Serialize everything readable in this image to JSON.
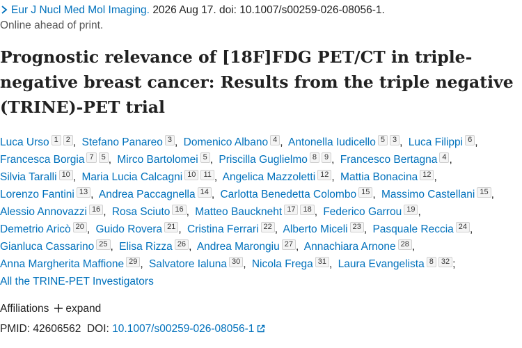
{
  "journal": {
    "name": "Eur J Nucl Med Mol Imaging.",
    "citation": "2026 Aug 17. doi: 10.1007/s00259-026-08056-1."
  },
  "status": "Online ahead of print.",
  "title": "Prognostic relevance of [18F]FDG PET/CT in triple-negative breast cancer: Results from the triple negative (TRINE)-PET trial",
  "authors": [
    {
      "name": "Luca Urso",
      "affiliations": [
        1,
        2
      ],
      "separator": ","
    },
    {
      "name": "Stefano Panareo",
      "affiliations": [
        3
      ],
      "separator": ","
    },
    {
      "name": "Domenico Albano",
      "affiliations": [
        4
      ],
      "separator": ","
    },
    {
      "name": "Antonella Iudicello",
      "affiliations": [
        5,
        3
      ],
      "separator": ","
    },
    {
      "name": "Luca Filippi",
      "affiliations": [
        6
      ],
      "separator": ","
    },
    {
      "name": "Francesca Borgia",
      "affiliations": [
        7,
        5
      ],
      "separator": ","
    },
    {
      "name": "Mirco Bartolomei",
      "affiliations": [
        5
      ],
      "separator": ","
    },
    {
      "name": "Priscilla Guglielmo",
      "affiliations": [
        8,
        9
      ],
      "separator": ","
    },
    {
      "name": "Francesco Bertagna",
      "affiliations": [
        4
      ],
      "separator": ","
    },
    {
      "name": "Silvia Taralli",
      "affiliations": [
        10
      ],
      "separator": ","
    },
    {
      "name": "Maria Lucia Calcagni",
      "affiliations": [
        10,
        11
      ],
      "separator": ","
    },
    {
      "name": "Angelica Mazzoletti",
      "affiliations": [
        12
      ],
      "separator": ","
    },
    {
      "name": "Mattia Bonacina",
      "affiliations": [
        12
      ],
      "separator": ","
    },
    {
      "name": "Lorenzo Fantini",
      "affiliations": [
        13
      ],
      "separator": ","
    },
    {
      "name": "Andrea Paccagnella",
      "affiliations": [
        14
      ],
      "separator": ","
    },
    {
      "name": "Carlotta Benedetta Colombo",
      "affiliations": [
        15
      ],
      "separator": ","
    },
    {
      "name": "Massimo Castellani",
      "affiliations": [
        15
      ],
      "separator": ","
    },
    {
      "name": "Alessio Annovazzi",
      "affiliations": [
        16
      ],
      "separator": ","
    },
    {
      "name": "Rosa Sciuto",
      "affiliations": [
        16
      ],
      "separator": ","
    },
    {
      "name": "Matteo Bauckneht",
      "affiliations": [
        17,
        18
      ],
      "separator": ","
    },
    {
      "name": "Federico Garrou",
      "affiliations": [
        19
      ],
      "separator": ","
    },
    {
      "name": "Demetrio Aricò",
      "affiliations": [
        20
      ],
      "separator": ","
    },
    {
      "name": "Guido Rovera",
      "affiliations": [
        21
      ],
      "separator": ","
    },
    {
      "name": "Cristina Ferrari",
      "affiliations": [
        22
      ],
      "separator": ","
    },
    {
      "name": "Alberto Miceli",
      "affiliations": [
        23
      ],
      "separator": ","
    },
    {
      "name": "Pasquale Reccia",
      "affiliations": [
        24
      ],
      "separator": ","
    },
    {
      "name": "Gianluca Cassarino",
      "affiliations": [
        25
      ],
      "separator": ","
    },
    {
      "name": "Elisa Rizza",
      "affiliations": [
        26
      ],
      "separator": ","
    },
    {
      "name": "Andrea Marongiu",
      "affiliations": [
        27
      ],
      "separator": ","
    },
    {
      "name": "Annachiara Arnone",
      "affiliations": [
        28
      ],
      "separator": ","
    },
    {
      "name": "Anna Margherita Maffione",
      "affiliations": [
        29
      ],
      "separator": ","
    },
    {
      "name": "Salvatore Ialuna",
      "affiliations": [
        30
      ],
      "separator": ","
    },
    {
      "name": "Nicola Frega",
      "affiliations": [
        31
      ],
      "separator": ","
    },
    {
      "name": "Laura Evangelista",
      "affiliations": [
        8,
        32
      ],
      "separator": ";"
    }
  ],
  "group_author": "All the TRINE-PET Investigators",
  "affiliations": {
    "label": "Affiliations",
    "action": "expand"
  },
  "identifiers": {
    "pmid_label": "PMID:",
    "pmid": "42606562",
    "doi_label": "DOI:",
    "doi": "10.1007/s00259-026-08056-1"
  }
}
